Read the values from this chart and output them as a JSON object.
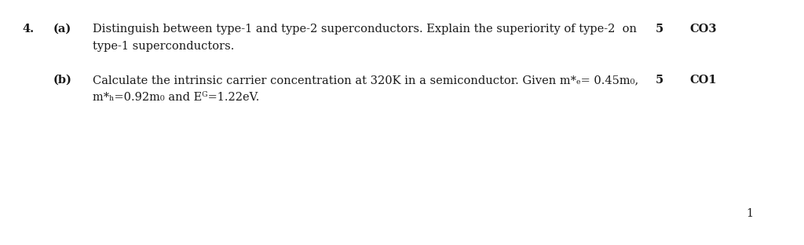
{
  "background_color": "#ffffff",
  "question_number": "4.",
  "part_a_label": "(a)",
  "part_a_line1": "Distinguish between type-1 and type-2 superconductors. Explain the superiority of type-2  on",
  "part_a_marks": "5",
  "part_a_co": "CO3",
  "part_a_line2": "type-1 superconductors.",
  "part_b_label": "(b)",
  "part_b_line1": "Calculate the intrinsic carrier concentration at 320K in a semiconductor. Given m*ₑ= 0.45m₀,",
  "part_b_marks": "5",
  "part_b_co": "CO1",
  "part_b_line2": "m*ₕ=0.92m₀ and Eᴳ=1.22eV.",
  "page_number": "1",
  "font_size": 10.5,
  "font_color": "#1a1a1a"
}
